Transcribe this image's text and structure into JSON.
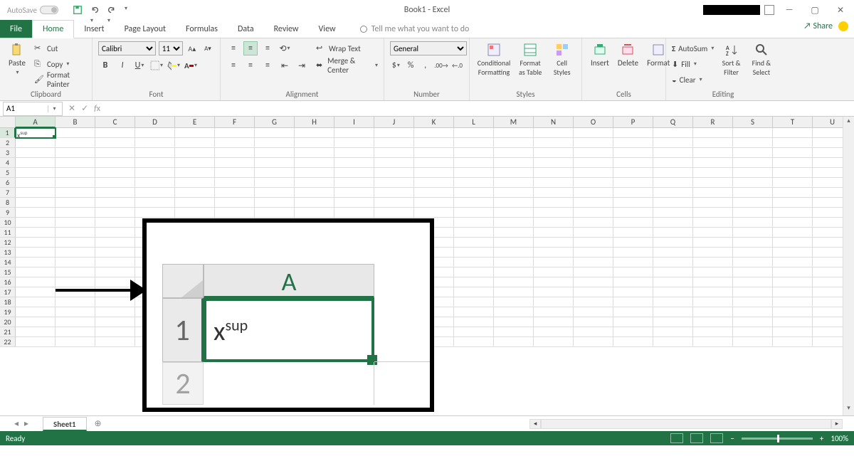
{
  "title": "Book1 - Excel",
  "autosave": {
    "label": "AutoSave",
    "state": "Off"
  },
  "qat": {
    "save": "save-icon",
    "undo": "undo-icon",
    "redo": "redo-icon"
  },
  "tabs": {
    "file": "File",
    "items": [
      "Home",
      "Insert",
      "Page Layout",
      "Formulas",
      "Data",
      "Review",
      "View"
    ],
    "active": "Home",
    "tellme": "Tell me what you want to do",
    "share": "Share"
  },
  "ribbon": {
    "clipboard": {
      "label": "Clipboard",
      "paste": "Paste",
      "cut": "Cut",
      "copy": "Copy",
      "painter": "Format Painter"
    },
    "font": {
      "label": "Font",
      "name": "Calibri",
      "size": "11",
      "bold": "B",
      "italic": "I",
      "underline": "U",
      "fill_color": "#ffff00",
      "font_color": "#c00000"
    },
    "alignment": {
      "label": "Alignment",
      "wrap": "Wrap Text",
      "merge": "Merge & Center"
    },
    "number": {
      "label": "Number",
      "format": "General"
    },
    "styles": {
      "label": "Styles",
      "cond": "Conditional Formatting",
      "table": "Format as Table",
      "cell": "Cell Styles"
    },
    "cells": {
      "label": "Cells",
      "insert": "Insert",
      "delete": "Delete",
      "format": "Format"
    },
    "editing": {
      "label": "Editing",
      "autosum": "AutoSum",
      "fill": "Fill",
      "clear": "Clear",
      "sort": "Sort & Filter",
      "find": "Find & Select"
    }
  },
  "namebox": "A1",
  "grid": {
    "columns": [
      "A",
      "B",
      "C",
      "D",
      "E",
      "F",
      "G",
      "H",
      "I",
      "J",
      "K",
      "L",
      "M",
      "N",
      "O",
      "P",
      "Q",
      "R",
      "S",
      "T",
      "U"
    ],
    "rows": 22,
    "active_cell": "A1",
    "a1_value": "x",
    "a1_sup": "sup",
    "selected_col": "A",
    "selected_row": 1
  },
  "callout": {
    "col": "A",
    "row1": "1",
    "row2": "2",
    "cell_base": "x",
    "cell_sup": "sup",
    "border_color": "#217346"
  },
  "sheet": {
    "name": "Sheet1"
  },
  "status": {
    "text": "Ready",
    "zoom": "100%"
  },
  "colors": {
    "excel_green": "#217346",
    "ribbon_bg": "#f3f3f3"
  }
}
